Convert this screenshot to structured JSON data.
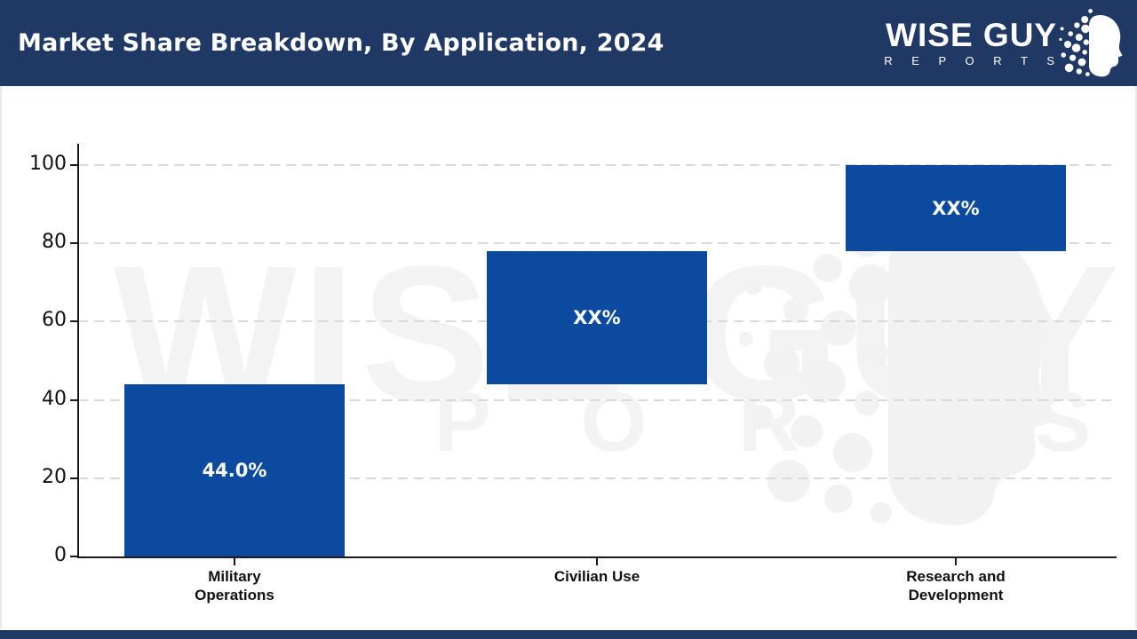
{
  "header": {
    "title": "Market Share Breakdown, By Application, 2024",
    "bg_color": "#1f3864",
    "logo": {
      "line1": "WISE GUY",
      "line2": "R E P O R T S"
    }
  },
  "watermark": {
    "line1": "WISE GUY",
    "line2": "R E P O R T S",
    "color": "#f3f3f3"
  },
  "chart_data": {
    "type": "bar",
    "variant": "floating-waterfall",
    "title": "Market Share Breakdown, By Application, 2024",
    "categories": [
      "Military Operations",
      "Civilian Use",
      "Research and Development"
    ],
    "segments": [
      {
        "category": "Military Operations",
        "start": 0,
        "end": 44,
        "label": "44.0%"
      },
      {
        "category": "Civilian Use",
        "start": 44,
        "end": 78,
        "label": "XX%"
      },
      {
        "category": "Research and Development",
        "start": 78,
        "end": 100,
        "label": "XX%"
      }
    ],
    "y_ticks": [
      0,
      20,
      40,
      60,
      80,
      100
    ],
    "ylim": [
      0,
      105
    ],
    "xlabel": "",
    "ylabel": "",
    "legend": "none",
    "grid": "horizontal-dashed",
    "bar_color": "#0b4a9e",
    "bar_label_color": "#ffffff",
    "axis_color": "#1a1a1a",
    "gridline_color": "#d9d9d9"
  }
}
